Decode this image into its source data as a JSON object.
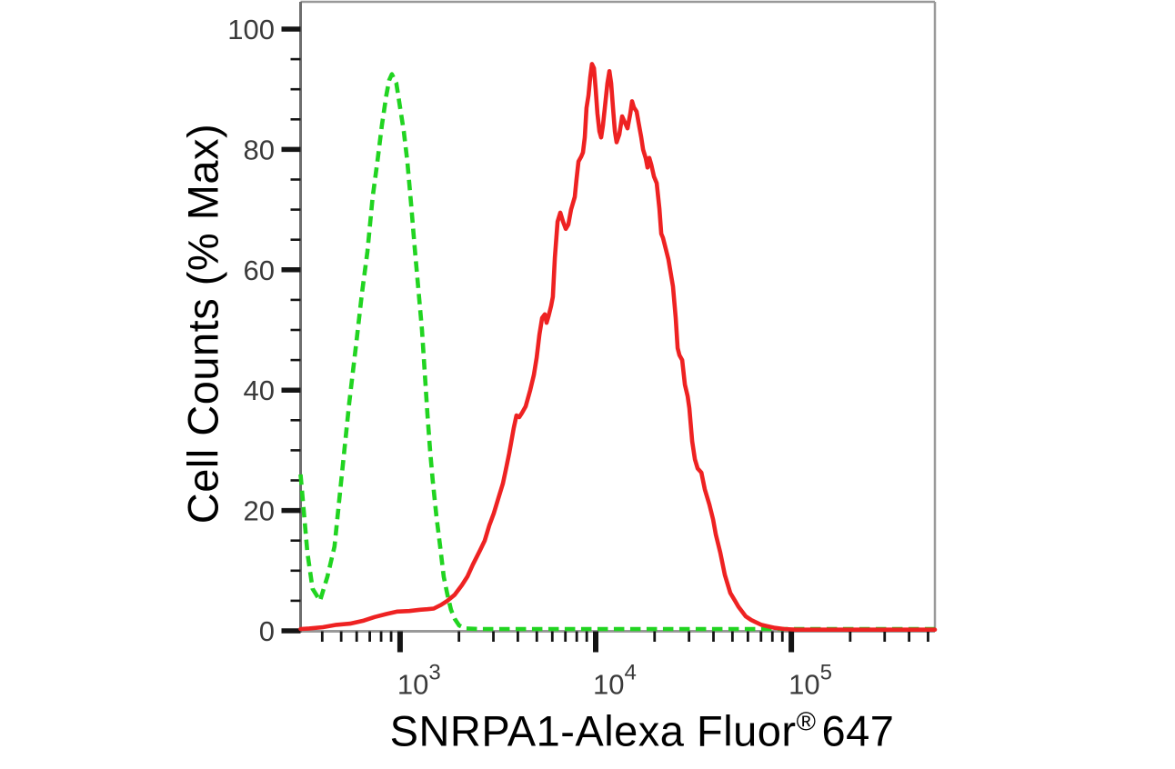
{
  "figure": {
    "background": "#ffffff"
  },
  "chart_data": {
    "type": "line",
    "subtype": "flow_cytometry_histogram_overlay",
    "title": "",
    "ylabel": "Cell Counts (% Max)",
    "xlabel": "SNRPA1-Alexa Fluor® 647",
    "xlabel_parts": {
      "prefix": "SNRPA1-Alexa Fluor",
      "registered_mark": "®",
      "suffix": "647"
    },
    "x_scale": "log10",
    "x_range": [
      310,
      542000
    ],
    "y_range": [
      0,
      104.5
    ],
    "grid": false,
    "legend_position": "none",
    "x_major_ticks": [
      {
        "value": 1000,
        "label_base": "10",
        "label_exponent": "3"
      },
      {
        "value": 10000,
        "label_base": "10",
        "label_exponent": "4"
      },
      {
        "value": 100000,
        "label_base": "10",
        "label_exponent": "5"
      }
    ],
    "x_minor_tick_multipliers": [
      2,
      3,
      4,
      5,
      6,
      7,
      8,
      9
    ],
    "y_major_ticks": [
      0,
      20,
      40,
      60,
      80,
      100
    ],
    "y_minor_step": 5,
    "colors": {
      "green_dashed": "#21d421",
      "red_solid": "#ee2222",
      "axis_frame": "#999999",
      "axis_left": "#6e6e6e",
      "ticks": "#141414",
      "tick_labels": "#3a3a3a",
      "axis_titles": "#000000"
    },
    "series": [
      {
        "name": "green-dashed-curve",
        "line_style": "dashed",
        "color_key": "green_dashed",
        "points": [
          [
            310,
            26
          ],
          [
            336,
            13
          ],
          [
            357,
            7
          ],
          [
            390,
            5
          ],
          [
            425,
            9
          ],
          [
            462,
            14
          ],
          [
            504,
            26
          ],
          [
            550,
            38
          ],
          [
            598,
            48
          ],
          [
            638,
            56
          ],
          [
            681,
            63
          ],
          [
            724,
            72
          ],
          [
            766,
            78
          ],
          [
            807,
            84
          ],
          [
            851,
            89
          ],
          [
            879,
            91.5
          ],
          [
            908,
            92.5
          ],
          [
            957,
            91
          ],
          [
            1000,
            87
          ],
          [
            1045,
            83
          ],
          [
            1089,
            78
          ],
          [
            1138,
            71
          ],
          [
            1186,
            64
          ],
          [
            1239,
            57
          ],
          [
            1294,
            50
          ],
          [
            1336,
            43
          ],
          [
            1380,
            36
          ],
          [
            1423,
            30
          ],
          [
            1469,
            25
          ],
          [
            1535,
            19
          ],
          [
            1603,
            14
          ],
          [
            1671,
            9
          ],
          [
            1746,
            6
          ],
          [
            1820,
            3.5
          ],
          [
            1902,
            2
          ],
          [
            2004,
            0.9
          ],
          [
            2163,
            0.4
          ],
          [
            2500,
            0.3
          ],
          [
            542000,
            0.3
          ]
        ]
      },
      {
        "name": "red-solid-curve",
        "line_style": "solid",
        "color_key": "red_solid",
        "points": [
          [
            310,
            0.3
          ],
          [
            343,
            0.4
          ],
          [
            403,
            0.6
          ],
          [
            472,
            1
          ],
          [
            555,
            1.2
          ],
          [
            652,
            1.7
          ],
          [
            741,
            2.3
          ],
          [
            851,
            2.8
          ],
          [
            968,
            3.2
          ],
          [
            1114,
            3.3
          ],
          [
            1264,
            3.5
          ],
          [
            1380,
            3.6
          ],
          [
            1486,
            3.7
          ],
          [
            1618,
            4.3
          ],
          [
            1746,
            5
          ],
          [
            1902,
            6
          ],
          [
            2070,
            7.6
          ],
          [
            2208,
            9
          ],
          [
            2355,
            11
          ],
          [
            2565,
            13.4
          ],
          [
            2710,
            15
          ],
          [
            2858,
            17.5
          ],
          [
            3013,
            19.5
          ],
          [
            3177,
            22
          ],
          [
            3357,
            24.5
          ],
          [
            3467,
            26.7
          ],
          [
            3614,
            29.5
          ],
          [
            3811,
            33.7
          ],
          [
            3936,
            35.8
          ],
          [
            4064,
            35.5
          ],
          [
            4198,
            36.2
          ],
          [
            4385,
            37.3
          ],
          [
            4624,
            40
          ],
          [
            4831,
            42.5
          ],
          [
            4989,
            45.4
          ],
          [
            5152,
            49.2
          ],
          [
            5321,
            52
          ],
          [
            5495,
            52.6
          ],
          [
            5610,
            51.2
          ],
          [
            5728,
            52.2
          ],
          [
            5916,
            54
          ],
          [
            6042,
            55.5
          ],
          [
            6180,
            62
          ],
          [
            6383,
            68
          ],
          [
            6592,
            69.5
          ],
          [
            6808,
            68
          ],
          [
            7031,
            66.8
          ],
          [
            7244,
            67.5
          ],
          [
            7482,
            70
          ],
          [
            7816,
            72.1
          ],
          [
            7980,
            75
          ],
          [
            8166,
            78
          ],
          [
            8433,
            78.8
          ],
          [
            8610,
            79.5
          ],
          [
            8790,
            82
          ],
          [
            8974,
            86.9
          ],
          [
            9183,
            89
          ],
          [
            9376,
            92
          ],
          [
            9572,
            94.2
          ],
          [
            9795,
            93.5
          ],
          [
            10000,
            90
          ],
          [
            10200,
            86
          ],
          [
            10450,
            83
          ],
          [
            10660,
            82
          ],
          [
            10890,
            84
          ],
          [
            11140,
            87
          ],
          [
            11480,
            91
          ],
          [
            11750,
            93
          ],
          [
            12000,
            91
          ],
          [
            12250,
            87
          ],
          [
            12530,
            83
          ],
          [
            12790,
            81.2
          ],
          [
            13210,
            82.5
          ],
          [
            13650,
            85.5
          ],
          [
            14090,
            84.5
          ],
          [
            14550,
            83.5
          ],
          [
            15030,
            86
          ],
          [
            15350,
            88
          ],
          [
            15670,
            87
          ],
          [
            16180,
            86.3
          ],
          [
            16550,
            84.5
          ],
          [
            17100,
            82
          ],
          [
            17460,
            80
          ],
          [
            18030,
            78.5
          ],
          [
            18410,
            77
          ],
          [
            18800,
            78.6
          ],
          [
            19230,
            77.5
          ],
          [
            19860,
            75.5
          ],
          [
            20510,
            74.4
          ],
          [
            21180,
            70.1
          ],
          [
            21630,
            66
          ],
          [
            22080,
            65.3
          ],
          [
            22800,
            63.5
          ],
          [
            23550,
            61.7
          ],
          [
            24320,
            59
          ],
          [
            24830,
            57.2
          ],
          [
            25650,
            52
          ],
          [
            26240,
            47
          ],
          [
            26790,
            45.8
          ],
          [
            27670,
            45
          ],
          [
            28580,
            40.9
          ],
          [
            29510,
            39
          ],
          [
            30130,
            37
          ],
          [
            31120,
            31.5
          ],
          [
            32140,
            28.5
          ],
          [
            33190,
            27
          ],
          [
            34670,
            26.3
          ],
          [
            36140,
            23.5
          ],
          [
            38110,
            21
          ],
          [
            39810,
            18.5
          ],
          [
            41110,
            16
          ],
          [
            43350,
            13
          ],
          [
            45710,
            9.3
          ],
          [
            48750,
            6.3
          ],
          [
            51520,
            5
          ],
          [
            53700,
            4
          ],
          [
            56620,
            3
          ],
          [
            58480,
            2.4
          ],
          [
            62370,
            1.8
          ],
          [
            65160,
            1.5
          ],
          [
            70310,
            1
          ],
          [
            74820,
            0.8
          ],
          [
            82410,
            0.5
          ],
          [
            91830,
            0.3
          ],
          [
            105500,
            0.2
          ],
          [
            542000,
            0.2
          ]
        ]
      }
    ]
  }
}
